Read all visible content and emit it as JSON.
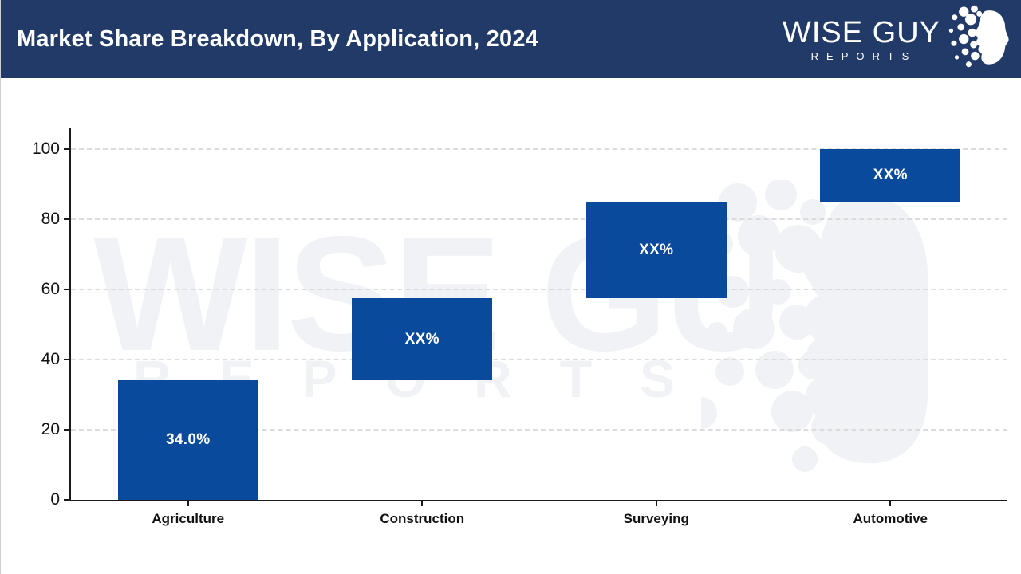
{
  "header": {
    "title": "Market Share Breakdown, By Application, 2024",
    "logo": {
      "line1": "WISE GUY",
      "line2": "REPORTS"
    }
  },
  "watermark": {
    "line1": "WISE GUY",
    "line2": "REPORTS"
  },
  "colors": {
    "header_navy": "#213A68",
    "bar_blue": "#0A4A9D",
    "gridline_gray": "#DCDCDC",
    "watermark_gray": "#F1F2F5"
  },
  "chart_data": {
    "type": "bar",
    "subtype": "waterfall-floating-bars",
    "title": "Market Share Breakdown, By Application, 2024",
    "categories": [
      "Agriculture",
      "Construction",
      "Surveying",
      "Automotive"
    ],
    "segments": [
      {
        "category": "Agriculture",
        "start": 0,
        "end": 34,
        "label": "34.0%"
      },
      {
        "category": "Construction",
        "start": 34,
        "end": 57.5,
        "label": "XX%"
      },
      {
        "category": "Surveying",
        "start": 57.5,
        "end": 85,
        "label": "XX%"
      },
      {
        "category": "Automotive",
        "start": 85,
        "end": 100,
        "label": "XX%"
      }
    ],
    "y_ticks": [
      0,
      20,
      40,
      60,
      80,
      100
    ],
    "ylim": [
      0,
      106
    ],
    "xlabel": "",
    "ylabel": "",
    "grid": "horizontal-dashed",
    "legend": "none",
    "bar_color": "#0A4A9D",
    "bar_label_color": "#FFFFFF"
  }
}
